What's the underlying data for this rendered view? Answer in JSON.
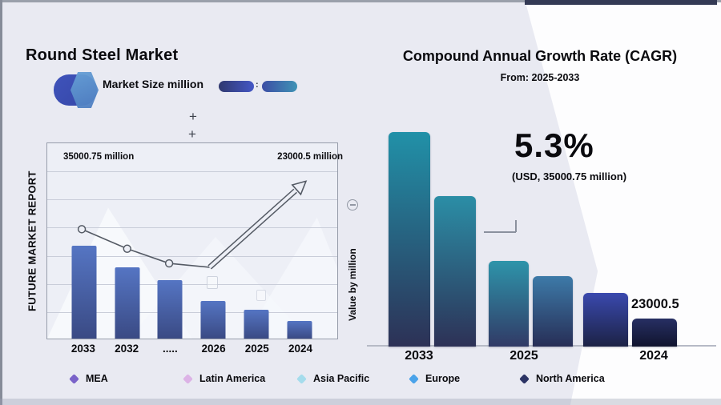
{
  "colors": {
    "page_bg": "#e9eaf2",
    "panel_bg": "#edeff6",
    "line_stroke": "#545a64",
    "brand_blue": "#3f53bb",
    "brand_teal": "#2f93a8"
  },
  "header_left": {
    "title": "Round Steel Market",
    "market_size_label": "Market Size million",
    "ratio_separator": ":"
  },
  "header_right": {
    "title": "Compound Annual Growth Rate (CAGR)",
    "subtitle": "From: 2025-2033"
  },
  "cagr": {
    "value": "5.3%",
    "caption": "(USD, 35000.75 million)"
  },
  "decor": {
    "plus": "+",
    "vertical_watermark": "FUTURE MARKET REPORT",
    "value_axis_label": "Value by million"
  },
  "legend": {
    "items": [
      {
        "label": "MEA",
        "color": "#7a63c9"
      },
      {
        "label": "Latin America",
        "color": "#dcb3e6"
      },
      {
        "label": "Asia Pacific",
        "color": "#a5dcec"
      },
      {
        "label": "Europe",
        "color": "#4aa3ea"
      },
      {
        "label": "North America",
        "color": "#2c3465"
      }
    ]
  },
  "chart_data": [
    {
      "type": "bar",
      "title": "Round Steel Market size by year (stylized, unlabeled value axis)",
      "categories": [
        "2033",
        "2032",
        ".....",
        "2026",
        "2025",
        "2024"
      ],
      "values": [
        47,
        36,
        29.5,
        19,
        14.5,
        9
      ],
      "value_unit": "percent of plot height (no numeric axis shown)",
      "annotations": {
        "top_left": "35000.75 million",
        "top_right": "23000.5 million"
      },
      "xlabel": "",
      "ylabel": "FUTURE MARKET REPORT",
      "grid": true,
      "gridline_count": 6,
      "bar_centers_pct": [
        12.6,
        27.5,
        42.4,
        57.3,
        72.2,
        87.1
      ],
      "bar_gradient": [
        "#5575c3",
        "#3a4a84"
      ],
      "line_overlay": {
        "type": "line-with-arrow",
        "marker_points_pct": [
          [
            11.8,
            44
          ],
          [
            27.5,
            54
          ],
          [
            42,
            61.5
          ]
        ],
        "elbow_pct": [
          56,
          63.5
        ],
        "arrow_end_pct": [
          88.5,
          20.5
        ]
      }
    },
    {
      "type": "bar",
      "title": "CAGR comparison by year (stylized, unlabeled value axis)",
      "categories": [
        "2033",
        "2025",
        "2024"
      ],
      "ylabel": "Value by million",
      "value_unit": "index, tallest 2033 bar = 100 (no numeric axis shown)",
      "value_label": {
        "text": "23000.5",
        "attached_to": "2024"
      },
      "groups": [
        {
          "label": "2033",
          "bars": [
            {
              "value": 100,
              "from": "#2191a8",
              "to": "#2d3156"
            },
            {
              "value": 70,
              "from": "#2b8ea6",
              "to": "#2d3156"
            }
          ]
        },
        {
          "label": "2025",
          "bars": [
            {
              "value": 40,
              "from": "#2e94aa",
              "to": "#313a66"
            },
            {
              "value": 33,
              "from": "#3d7aa8",
              "to": "#272e56"
            }
          ]
        },
        {
          "label": "2024",
          "bars": [
            {
              "value": 25,
              "from": "#3a49ae",
              "to": "#1c2245"
            },
            {
              "value": 13,
              "from": "#272f63",
              "to": "#10142e"
            }
          ]
        }
      ]
    }
  ]
}
